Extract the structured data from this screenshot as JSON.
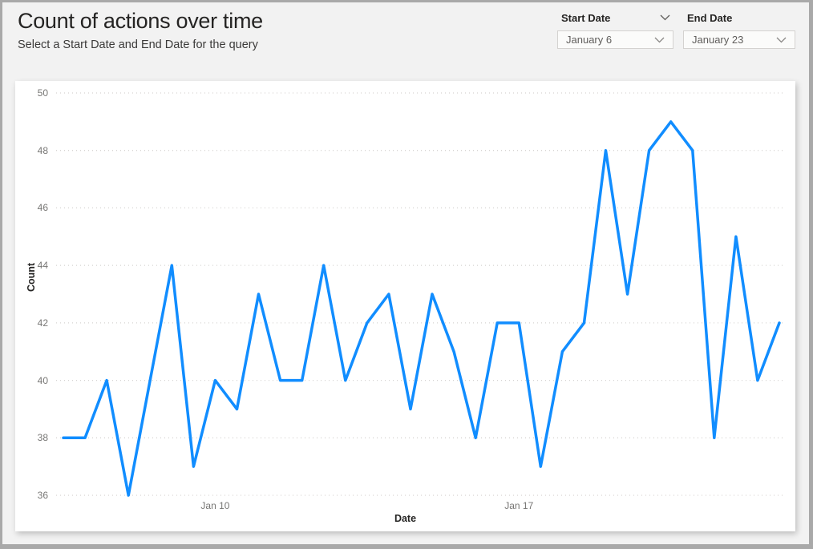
{
  "header": {
    "title": "Count of actions over time",
    "subtitle": "Select a Start Date and End Date for the query"
  },
  "slicers": {
    "start": {
      "label": "Start Date",
      "value": "January 6"
    },
    "end": {
      "label": "End Date",
      "value": "January 23"
    }
  },
  "chart_data": {
    "type": "line",
    "title": "",
    "xlabel": "Date",
    "ylabel": "Count",
    "ylim": [
      36,
      50
    ],
    "y_ticks": [
      36,
      38,
      40,
      42,
      44,
      46,
      48,
      50
    ],
    "grid": "horizontal-dotted",
    "legend": "none",
    "x_tick_labels": [
      {
        "label": "Jan 10",
        "index": 7
      },
      {
        "label": "Jan 17",
        "index": 21
      }
    ],
    "series": [
      {
        "name": "Count",
        "color": "#118DFF",
        "values": [
          38,
          38,
          40,
          36,
          40,
          44,
          37,
          40,
          39,
          43,
          40,
          40,
          44,
          40,
          42,
          43,
          39,
          43,
          41,
          38,
          42,
          42,
          37,
          41,
          42,
          48,
          43,
          48,
          49,
          48,
          38,
          45,
          40,
          42
        ]
      }
    ]
  },
  "colors": {
    "accent": "#118DFF",
    "page_bg": "#f2f2f2",
    "card_bg": "#ffffff",
    "frame_border": "#a9a9a9",
    "axis_tick_text": "#777674",
    "axis_title_text": "#252423",
    "gridline": "#d6d4d2"
  }
}
